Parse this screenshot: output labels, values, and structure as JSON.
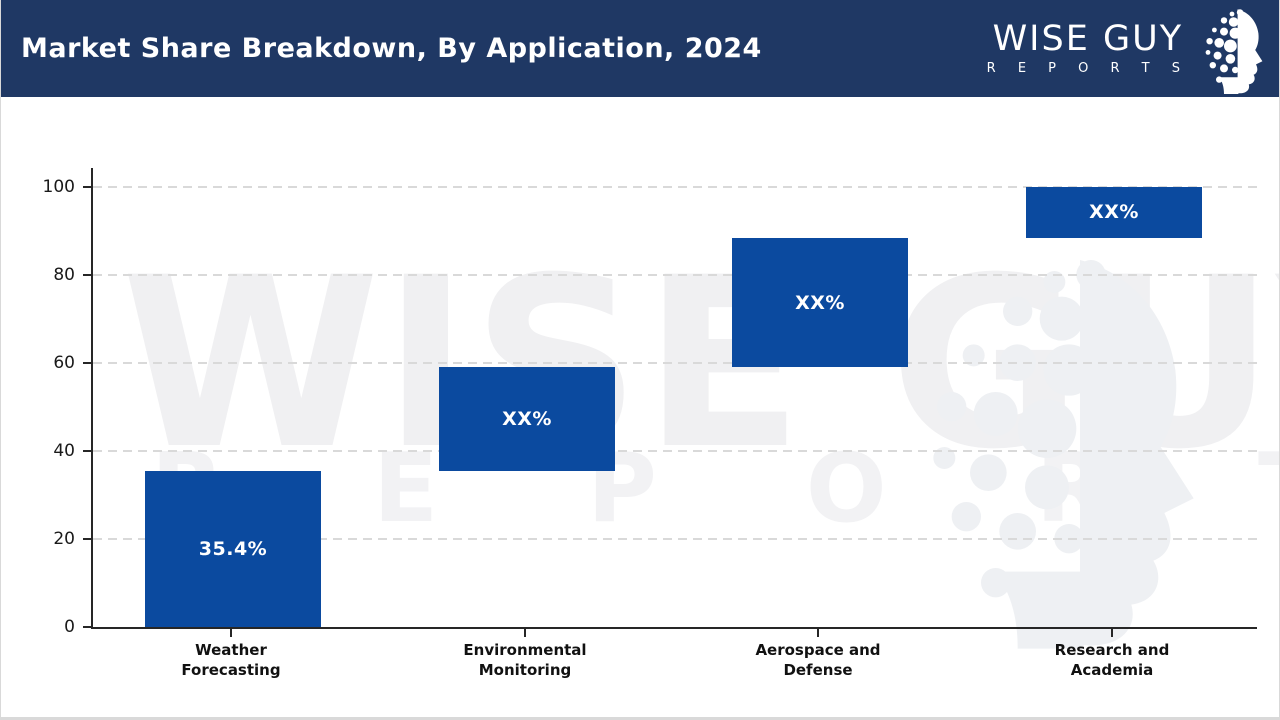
{
  "header": {
    "title": "Market Share Breakdown, By Application, 2024",
    "bg_color": "#1f3864",
    "logo": {
      "wordmark": "WISE GUY",
      "subtext": "R E P O R T S"
    }
  },
  "watermark": {
    "line1": "WISE GUY",
    "line2": "R E P O R T S"
  },
  "chart_data": {
    "type": "bar",
    "variant": "waterfall",
    "title": "Market Share Breakdown, By Application, 2024",
    "categories": [
      "Weather\nForecasting",
      "Environmental\nMonitoring",
      "Aerospace and\nDefense",
      "Research and\nAcademia"
    ],
    "bars": [
      {
        "category": "Weather\nForecasting",
        "start": 0,
        "end": 35.4,
        "label": "35.4%"
      },
      {
        "category": "Environmental\nMonitoring",
        "start": 35.4,
        "end": 59.0,
        "label": "XX%"
      },
      {
        "category": "Aerospace and\nDefense",
        "start": 59.0,
        "end": 88.5,
        "label": "XX%"
      },
      {
        "category": "Research and\nAcademia",
        "start": 88.5,
        "end": 100,
        "label": "XX%"
      }
    ],
    "bar_color": "#0b4a9f",
    "ylim": [
      0,
      100
    ],
    "yticks": [
      0,
      20,
      40,
      60,
      80,
      100
    ],
    "xlabel": "",
    "ylabel": "",
    "grid": "horizontal-dashed",
    "legend": "none"
  }
}
